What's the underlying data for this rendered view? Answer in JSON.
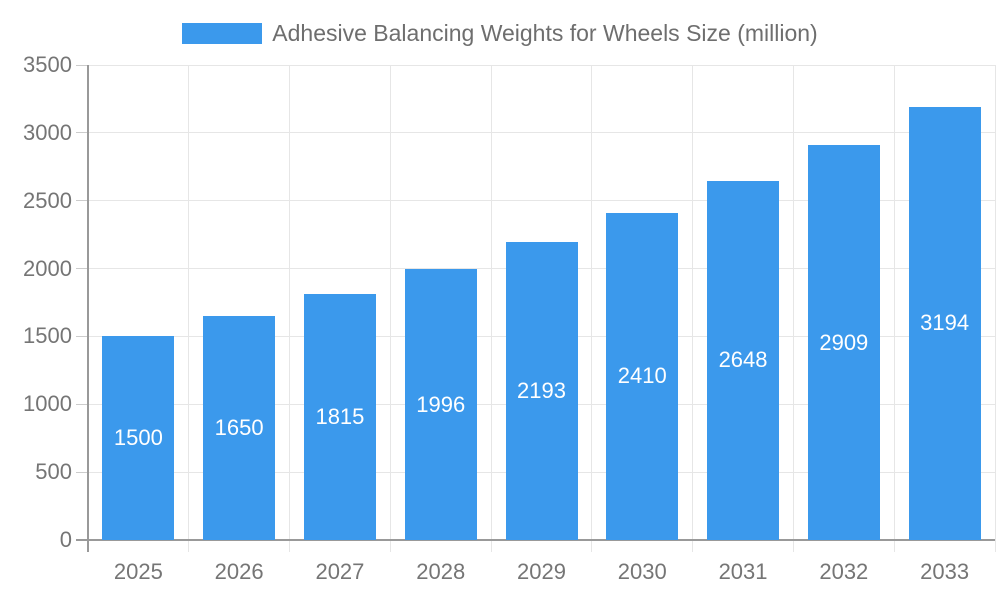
{
  "chart_data": {
    "type": "bar",
    "title": "Adhesive Balancing Weights for Wheels Size (million)",
    "categories": [
      "2025",
      "2026",
      "2027",
      "2028",
      "2029",
      "2030",
      "2031",
      "2032",
      "2033"
    ],
    "values": [
      1500,
      1650,
      1815,
      1996,
      2193,
      2410,
      2648,
      2909,
      3194
    ],
    "bar_labels": [
      "1500",
      "1650",
      "1815",
      "1996",
      "2193",
      "2410",
      "2648",
      "2909",
      "3194"
    ],
    "xlabel": "",
    "ylabel": "",
    "ylim": [
      0,
      3500
    ],
    "ytick_step": 500,
    "ytick_labels": [
      "0",
      "500",
      "1000",
      "1500",
      "2000",
      "2500",
      "3000",
      "3500"
    ],
    "grid": true,
    "legend_position": "top-center",
    "colors": {
      "bar": "#3b99ec",
      "bar_value_text": "#ffffff",
      "axis_text": "#757575",
      "legend_text": "#6e6e6e",
      "gridline": "#e6e6e6",
      "axis_line": "#999999",
      "tick": "#cccccc",
      "background": "#ffffff"
    }
  }
}
